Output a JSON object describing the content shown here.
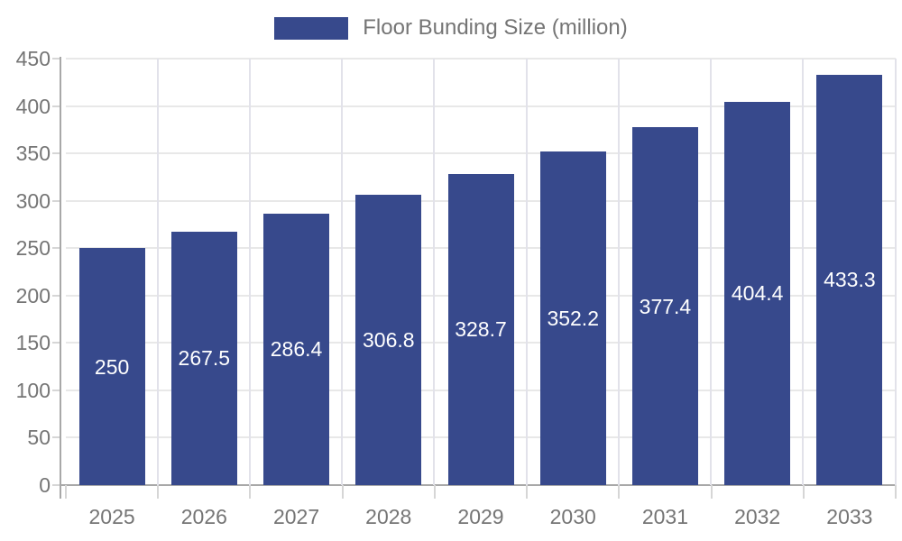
{
  "legend": {
    "label": "Floor Bunding Size (million)"
  },
  "chart_data": {
    "type": "bar",
    "title": "",
    "xlabel": "",
    "ylabel": "",
    "categories": [
      "2025",
      "2026",
      "2027",
      "2028",
      "2029",
      "2030",
      "2031",
      "2032",
      "2033"
    ],
    "series": [
      {
        "name": "Floor Bunding Size (million)",
        "values": [
          250,
          267.5,
          286.4,
          306.8,
          328.7,
          352.2,
          377.4,
          404.4,
          433.3
        ]
      }
    ],
    "value_labels": [
      "250",
      "267.5",
      "286.4",
      "306.8",
      "328.7",
      "352.2",
      "377.4",
      "404.4",
      "433.3"
    ],
    "ylim": [
      0,
      450
    ],
    "ytick_step": 50,
    "yticks": [
      0,
      50,
      100,
      150,
      200,
      250,
      300,
      350,
      400,
      450
    ],
    "grid": true,
    "legend_position": "top-center"
  },
  "colors": {
    "bar": "#37498C",
    "axis": "#a8a8a8",
    "grid_horizontal": "#e8e8e8",
    "grid_vertical": "#e2e2ea",
    "tick": "#d6d6d6",
    "axis_text": "#757575",
    "value_text": "#ffffff",
    "background": "#ffffff"
  }
}
